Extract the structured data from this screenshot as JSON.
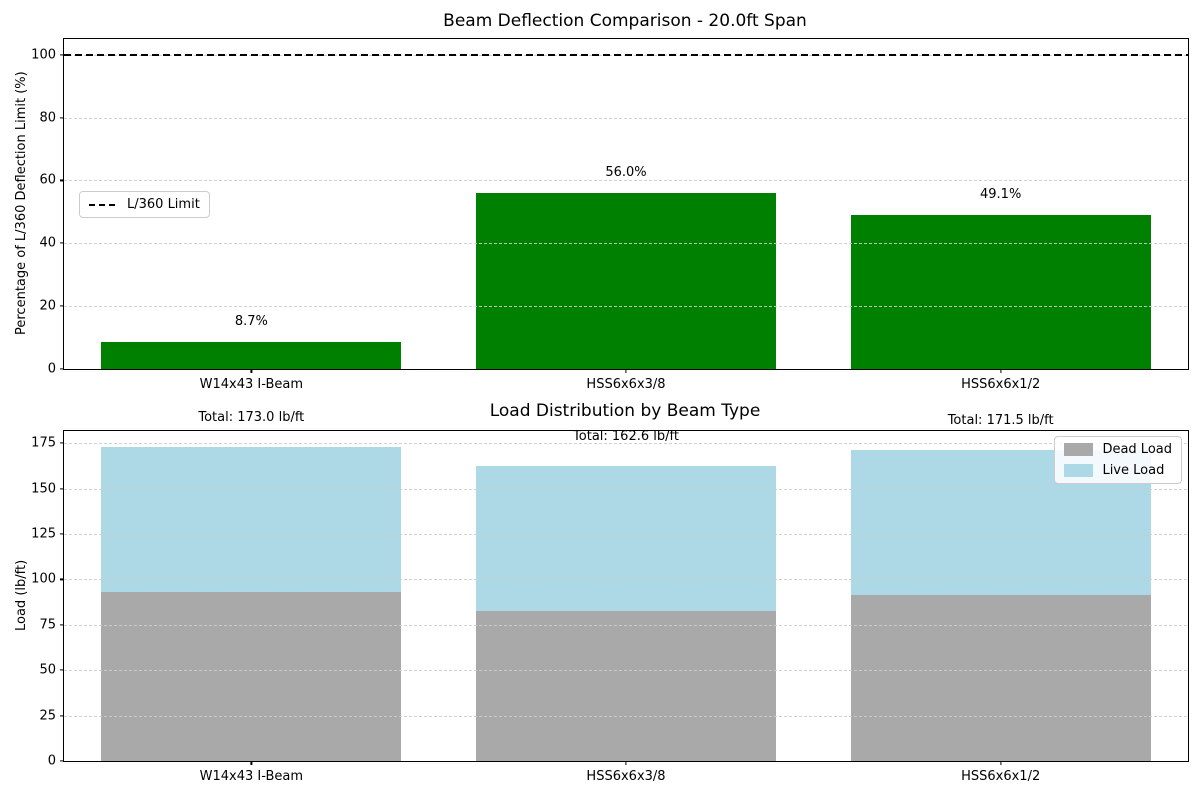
{
  "chart_data": [
    {
      "type": "bar",
      "title": "Beam Deflection Comparison - 20.0ft Span",
      "ylabel": "Percentage of L/360 Deflection Limit (%)",
      "categories": [
        "W14x43 I-Beam",
        "HSS6x6x3/8",
        "HSS6x6x1/2"
      ],
      "values": [
        8.7,
        56.0,
        49.1
      ],
      "value_labels": [
        "8.7%",
        "56.0%",
        "49.1%"
      ],
      "bar_color": "#008000",
      "ylim": [
        0,
        105
      ],
      "yticks": [
        0,
        20,
        40,
        60,
        80,
        100
      ],
      "grid": true,
      "limit_line": {
        "value": 100,
        "label": "L/360 Limit",
        "color": "#000000",
        "style": "dashed"
      },
      "legend_position": "center-left"
    },
    {
      "type": "stacked-bar",
      "title": "Load Distribution by Beam Type",
      "ylabel": "Load (lb/ft)",
      "categories": [
        "W14x43 I-Beam",
        "HSS6x6x3/8",
        "HSS6x6x1/2"
      ],
      "series": [
        {
          "name": "Dead Load",
          "color": "#a9a9a9",
          "values": [
            93.0,
            82.6,
            91.5
          ]
        },
        {
          "name": "Live Load",
          "color": "#add8e6",
          "values": [
            80.0,
            80.0,
            80.0
          ]
        }
      ],
      "totals": [
        173.0,
        162.6,
        171.5
      ],
      "total_labels": [
        "Total: 173.0 lb/ft",
        "Total: 162.6 lb/ft",
        "Total: 171.5 lb/ft"
      ],
      "ylim": [
        0,
        181.7
      ],
      "yticks": [
        0,
        25,
        50,
        75,
        100,
        125,
        150,
        175
      ],
      "grid": true,
      "legend_position": "top-right"
    }
  ]
}
